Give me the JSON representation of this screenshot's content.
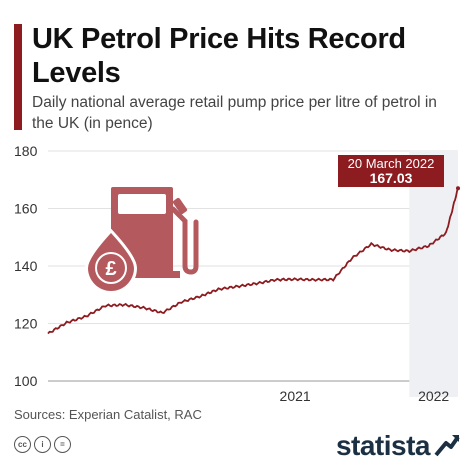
{
  "header": {
    "title": "UK Petrol Price Hits Record Levels",
    "subtitle": "Daily national average retail pump price per litre of petrol in the UK (in pence)"
  },
  "callout": {
    "date": "20 March 2022",
    "value": "167.03"
  },
  "footer": {
    "source": "Sources: Experian Catalist, RAC",
    "logo": "statista"
  },
  "icons": [
    "cc-icon",
    "by-icon",
    "nd-icon",
    "fuel-pump-icon",
    "pound-drop-icon",
    "statista-logo-icon"
  ],
  "colors": {
    "accent": "#8c1c20",
    "line": "#8c1c20",
    "highlight": "#eef0f4",
    "pump": "#b45a5e"
  },
  "chart_data": {
    "type": "line",
    "title": "UK Petrol Price Hits Record Levels",
    "ylabel": "",
    "xlabel": "",
    "ylim": [
      100,
      180
    ],
    "yticks": [
      100,
      120,
      140,
      160,
      180
    ],
    "x_tick_labels": [
      "2021",
      "2022"
    ],
    "x": [
      "2020-06-01",
      "2020-07-01",
      "2020-08-01",
      "2020-09-01",
      "2020-10-01",
      "2020-11-01",
      "2020-12-01",
      "2021-01-01",
      "2021-02-01",
      "2021-03-01",
      "2021-04-01",
      "2021-05-01",
      "2021-06-01",
      "2021-07-01",
      "2021-08-01",
      "2021-09-01",
      "2021-10-01",
      "2021-11-01",
      "2021-12-01",
      "2022-01-01",
      "2022-02-01",
      "2022-03-01",
      "2022-03-20"
    ],
    "series": [
      {
        "values": [
          116.5,
          120.3,
          122.5,
          126.2,
          126.5,
          125.5,
          123.7,
          127.5,
          129.5,
          131.9,
          132.9,
          133.9,
          135.2,
          135.4,
          135.2,
          135.3,
          142.7,
          147.6,
          145.6,
          145.2,
          147.0,
          151.5,
          167.03
        ]
      }
    ],
    "highlight_range": [
      "2022-01-01",
      "2022-03-20"
    ],
    "grid": "horizontal",
    "annotation": {
      "x": "2022-03-20",
      "y": 167.03,
      "label": "20 March 2022 167.03"
    }
  }
}
